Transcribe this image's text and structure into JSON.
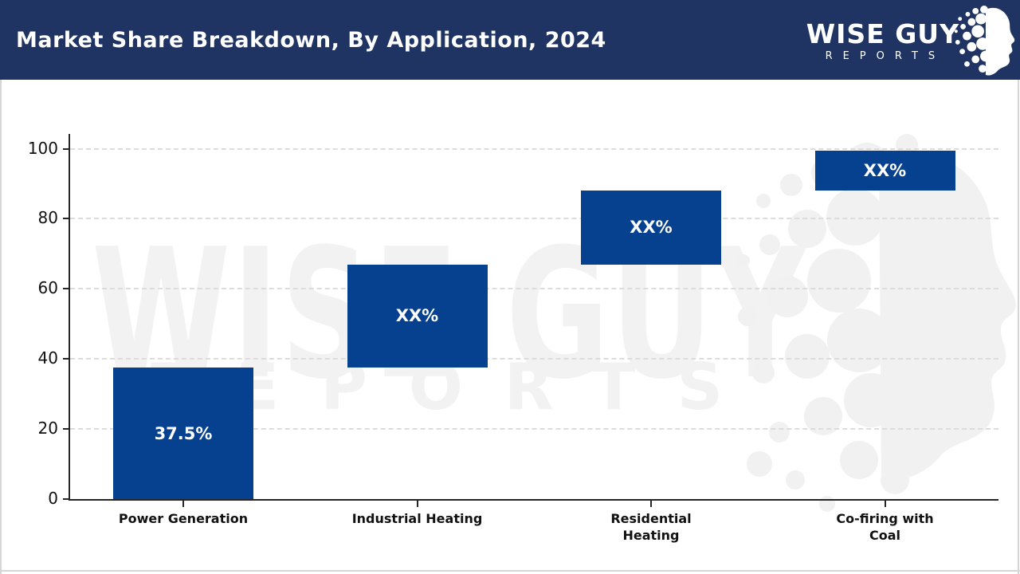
{
  "header": {
    "title": "Market Share Breakdown, By Application, 2024",
    "bg_color": "#1f3463",
    "logo": {
      "line1": "WISE GUY",
      "line2": "REPORTS"
    }
  },
  "watermark": {
    "line1": "WISE GUY",
    "line2": "REPORTS"
  },
  "chart_data": {
    "type": "bar",
    "subtype": "waterfall",
    "title": "Market Share Breakdown, By Application, 2024",
    "categories": [
      "Power Generation",
      "Industrial Heating",
      "Residential Heating",
      "Co-firing with Coal"
    ],
    "x_tick_labels": [
      "Power Generation",
      "Industrial Heating",
      "Residential\nHeating",
      "Co-firing with\nCoal"
    ],
    "segments": [
      {
        "category": "Power Generation",
        "start": 0,
        "end": 37.5,
        "value_label": "37.5%"
      },
      {
        "category": "Industrial Heating",
        "start": 37.5,
        "end": 67,
        "value_label": "XX%"
      },
      {
        "category": "Residential Heating",
        "start": 67,
        "end": 88,
        "value_label": "XX%"
      },
      {
        "category": "Co-firing with Coal",
        "start": 88,
        "end": 99.5,
        "value_label": "XX%"
      }
    ],
    "y_ticks": [
      0,
      20,
      40,
      60,
      80,
      100
    ],
    "ylim": [
      0,
      104
    ],
    "grid": "horizontal-dashed",
    "legend": "none",
    "bar_color": "#05418f",
    "gridline_color": "#dcdcdc",
    "axis_color": "#262626",
    "tick_label_color": "#111111",
    "value_label_color": "#ffffff"
  }
}
